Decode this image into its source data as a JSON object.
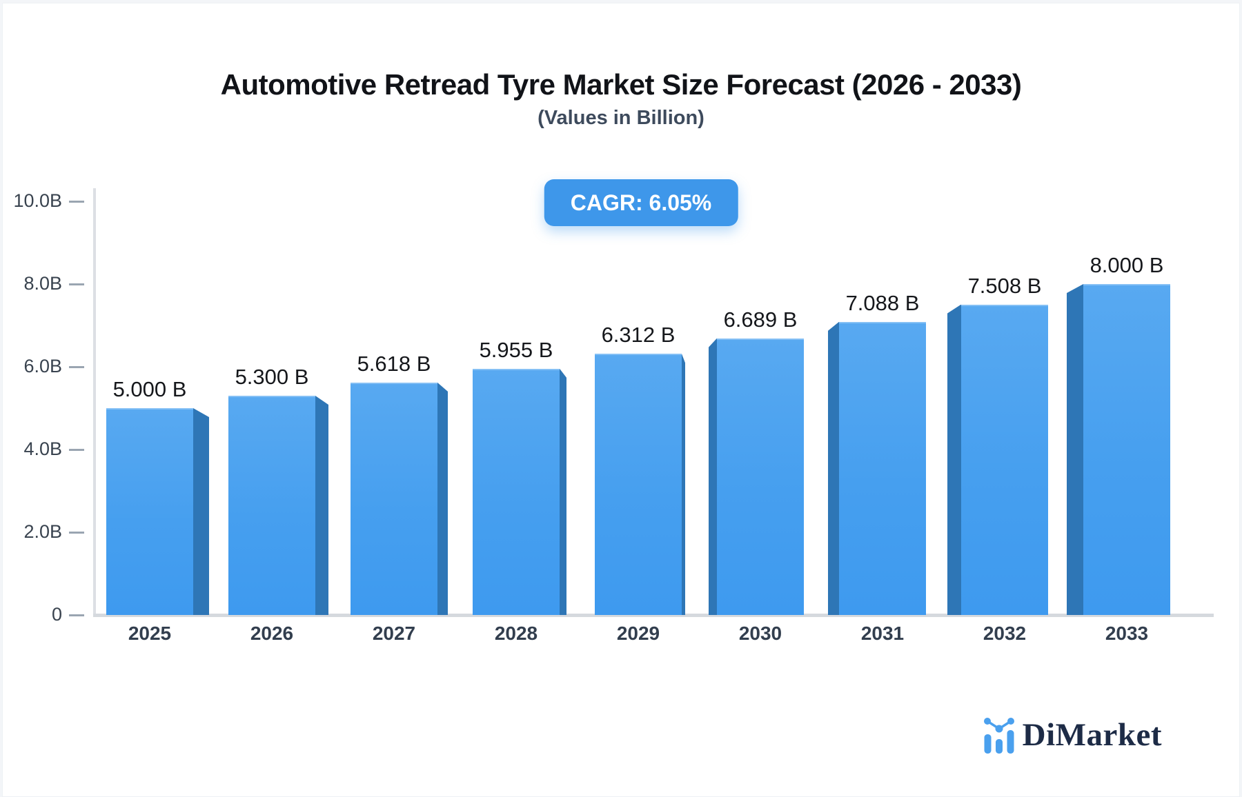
{
  "title": "Automotive Retread Tyre Market Size Forecast (2026 - 2033)",
  "subtitle": "(Values in Billion)",
  "badge": {
    "label": "CAGR: 6.05%"
  },
  "brand": {
    "name": "DiMarket"
  },
  "chart_data": {
    "type": "bar",
    "title": "Automotive Retread Tyre Market Size Forecast (2026 - 2033)",
    "subtitle": "(Values in Billion)",
    "cagr": "6.05%",
    "categories": [
      "2025",
      "2026",
      "2027",
      "2028",
      "2029",
      "2030",
      "2031",
      "2032",
      "2033"
    ],
    "values": [
      5.0,
      5.3,
      5.618,
      5.955,
      6.312,
      6.689,
      7.088,
      7.508,
      8.0
    ],
    "value_labels": [
      "5.000 B",
      "5.300 B",
      "5.618 B",
      "5.955 B",
      "6.312 B",
      "6.689 B",
      "7.088 B",
      "7.508 B",
      "8.000 B"
    ],
    "xlabel": "",
    "ylabel": "",
    "ylim": [
      0,
      10
    ],
    "yticks": [
      {
        "label": "0",
        "value": 0
      },
      {
        "label": "2.0B",
        "value": 2
      },
      {
        "label": "4.0B",
        "value": 4
      },
      {
        "label": "6.0B",
        "value": 6
      },
      {
        "label": "8.0B",
        "value": 8
      },
      {
        "label": "10.0B",
        "value": 10
      }
    ],
    "grid": false,
    "legend": false,
    "bar_style": "3d-extruded",
    "colors": {
      "bar_face_top": "#58a9f1",
      "bar_face_bottom": "#3e9aef",
      "bar_side": "#2e76b6",
      "badge_bg": "#3e97ea",
      "badge_text": "#ffffff",
      "axis_line": "#d5d9de",
      "tick_text": "#39434f",
      "value_text": "#15171b",
      "brand_navy": "#1d2b46",
      "brand_blue": "#4aa0ee"
    }
  }
}
